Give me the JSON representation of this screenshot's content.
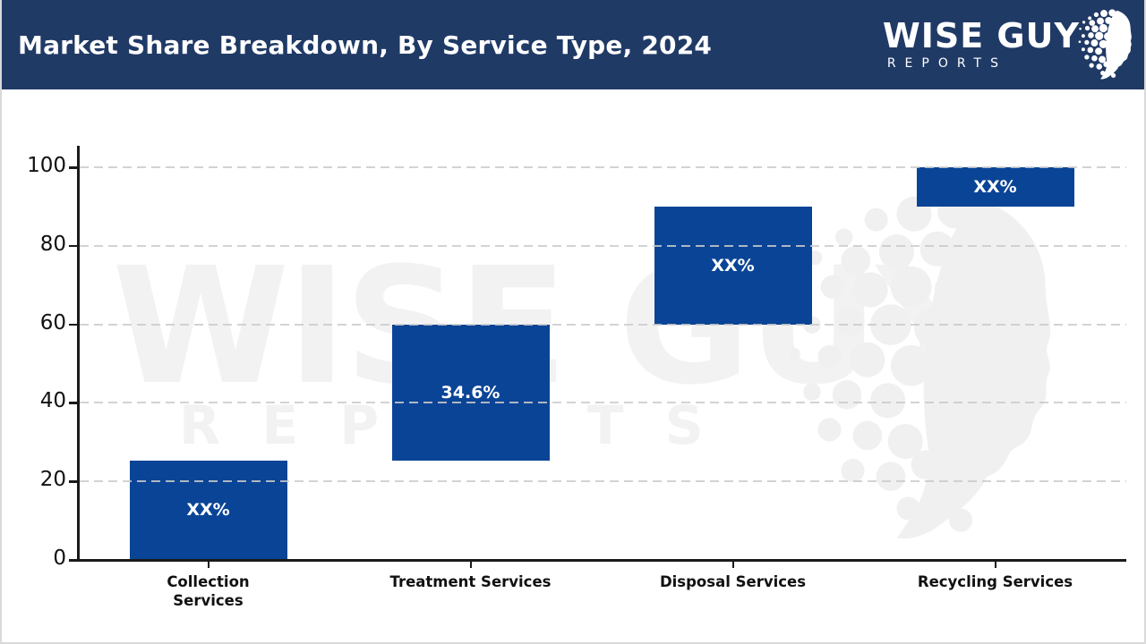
{
  "header": {
    "title": "Market Share Breakdown, By Service Type, 2024"
  },
  "logo": {
    "line1": "WISE GUY",
    "line2": "REPORTS"
  },
  "watermark": {
    "line1": "WISE GUY",
    "line2": "REPORTS"
  },
  "chart_data": {
    "type": "bar",
    "subtype": "waterfall-floating-bars",
    "title": "Market Share Breakdown, By Service Type, 2024",
    "xlabel": "",
    "ylabel": "",
    "categories": [
      "Collection\nServices",
      "Treatment Services",
      "Disposal Services",
      "Recycling Services"
    ],
    "segments": [
      {
        "category": "Collection Services",
        "start": 0,
        "end": 25.4,
        "label": "XX%"
      },
      {
        "category": "Treatment Services",
        "start": 25.4,
        "end": 60,
        "label": "34.6%"
      },
      {
        "category": "Disposal Services",
        "start": 60,
        "end": 90,
        "label": "XX%"
      },
      {
        "category": "Recycling Services",
        "start": 90,
        "end": 100,
        "label": "XX%"
      }
    ],
    "yticks": [
      0,
      20,
      40,
      60,
      80,
      100
    ],
    "ylim": [
      0,
      105.5
    ],
    "grid": "horizontal-dashed",
    "legend": "none",
    "bar_color": "#0a4496",
    "bar_label_color": "#ffffff",
    "axis_color": "#1a1a1a",
    "grid_color": "#d4d4d4",
    "header_bg_color": "#203a66",
    "watermark_color": "#f2f2f2"
  }
}
